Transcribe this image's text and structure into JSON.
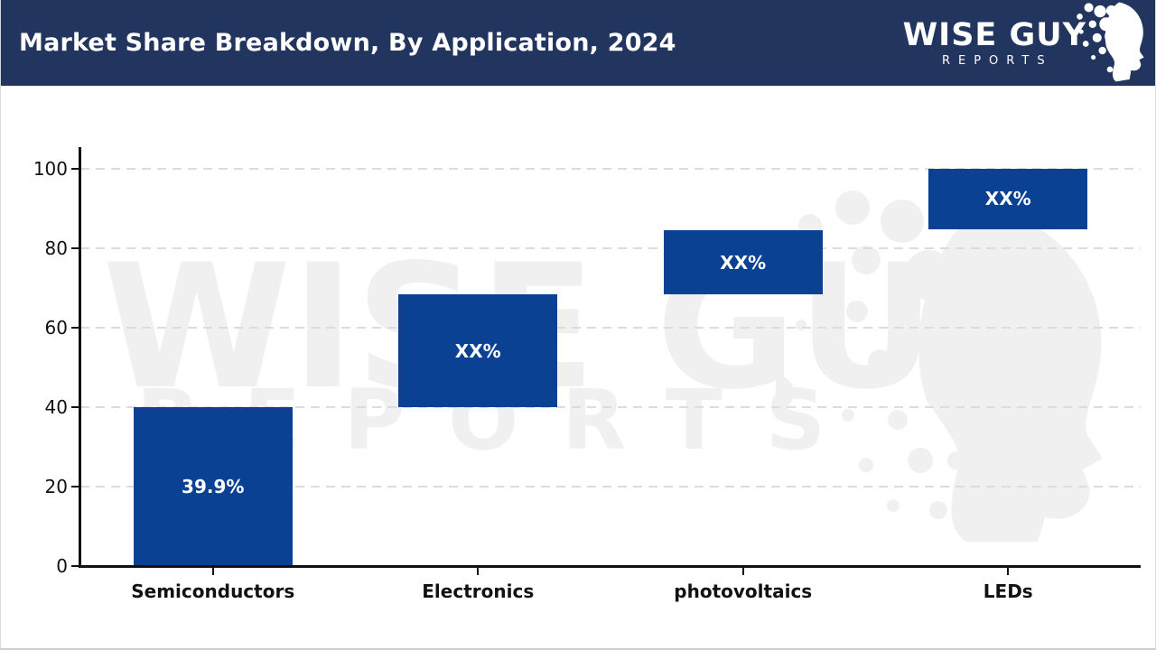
{
  "header": {
    "title": "Market Share Breakdown, By Application, 2024",
    "logo": {
      "line1": "WISE GUY",
      "line2": "REPORTS",
      "icon": "dotted-head-profile-icon"
    }
  },
  "watermark": {
    "line1": "WISE GUY",
    "line2": "REPORTS",
    "icon": "dotted-head-profile-icon"
  },
  "colors": {
    "header_bg": "#22355f",
    "bar": "#0b4193",
    "grid": "#dcdcdc",
    "axis": "#111111",
    "bar_label": "#ffffff",
    "watermark": "#f0f0f0"
  },
  "chart_data": {
    "type": "bar",
    "subtype": "waterfall",
    "title": "Market Share Breakdown, By Application, 2024",
    "xlabel": "",
    "ylabel": "",
    "categories": [
      "Semiconductors",
      "Electronics",
      "photovoltaics",
      "LEDs"
    ],
    "segments": [
      {
        "category": "Semiconductors",
        "start": 0,
        "end": 39.9,
        "label": "39.9%"
      },
      {
        "category": "Electronics",
        "start": 39.9,
        "end": 68.3,
        "label": "XX%"
      },
      {
        "category": "photovoltaics",
        "start": 68.3,
        "end": 84.6,
        "label": "XX%"
      },
      {
        "category": "LEDs",
        "start": 84.8,
        "end": 100,
        "label": "XX%"
      }
    ],
    "yticks": [
      0,
      20,
      40,
      60,
      80,
      100
    ],
    "ylim": [
      0,
      105
    ],
    "grid": "horizontal-dashed",
    "legend": "none",
    "bar_color": "#0b4193"
  }
}
